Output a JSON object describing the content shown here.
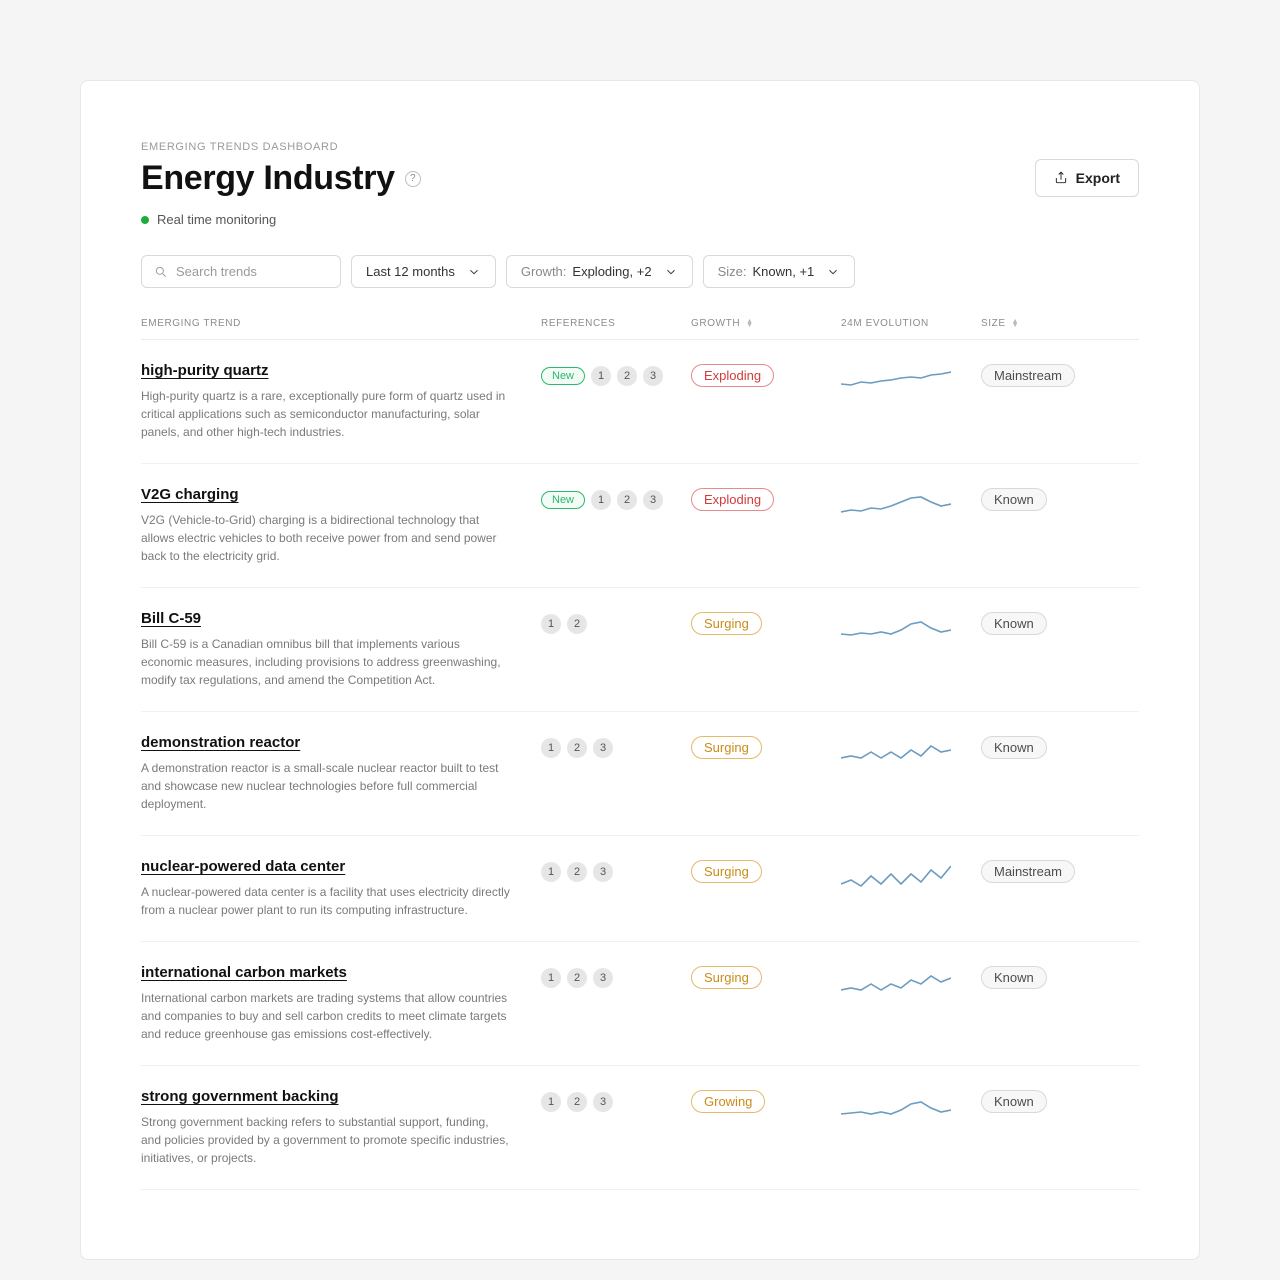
{
  "header": {
    "eyebrow": "EMERGING TRENDS DASHBOARD",
    "title": "Energy Industry",
    "monitor_label": "Real time monitoring",
    "export_label": "Export"
  },
  "controls": {
    "search_placeholder": "Search trends",
    "range_label": "Last 12 months",
    "growth_prefix": "Growth:",
    "growth_value": "Exploding, +2",
    "size_prefix": "Size:",
    "size_value": "Known, +1"
  },
  "columns": {
    "trend": "EMERGING TREND",
    "references": "REFERENCES",
    "growth": "GROWTH",
    "evolution": "24M EVOLUTION",
    "size": "SIZE"
  },
  "badges": {
    "new": "New"
  },
  "growth_styles": {
    "Exploding": {
      "class": "g-exploding"
    },
    "Surging": {
      "class": "g-surging"
    },
    "Growing": {
      "class": "g-growing"
    }
  },
  "sparkline_config": {
    "stroke": "#6a9bc0",
    "width": 110,
    "height": 34
  },
  "trends": [
    {
      "title": "high-purity quartz",
      "desc": "High-purity quartz is a rare, exceptionally pure form of quartz used in critical applications such as semiconductor manufacturing, solar panels, and other high-tech industries.",
      "is_new": true,
      "refs": [
        1,
        2,
        3
      ],
      "growth": "Exploding",
      "size": "Mainstream",
      "spark": [
        20,
        21,
        18,
        19,
        17,
        16,
        14,
        13,
        14,
        11,
        10,
        8
      ]
    },
    {
      "title": "V2G charging",
      "desc": "V2G (Vehicle-to-Grid) charging is a bidirectional technology that allows electric vehicles to both receive power from and send power back to the electricity grid.",
      "is_new": true,
      "refs": [
        1,
        2,
        3
      ],
      "growth": "Exploding",
      "size": "Known",
      "spark": [
        24,
        22,
        23,
        20,
        21,
        18,
        14,
        10,
        9,
        14,
        18,
        16
      ]
    },
    {
      "title": "Bill C-59",
      "desc": "Bill C-59 is a Canadian omnibus bill that implements various economic measures, including provisions to address greenwashing, modify tax regulations, and amend the Competition Act.",
      "is_new": false,
      "refs": [
        1,
        2
      ],
      "growth": "Surging",
      "size": "Known",
      "spark": [
        22,
        23,
        21,
        22,
        20,
        22,
        18,
        12,
        10,
        16,
        20,
        18
      ]
    },
    {
      "title": "demonstration reactor",
      "desc": "A demonstration reactor is a small-scale nuclear reactor built to test and showcase new nuclear technologies before full commercial deployment.",
      "is_new": false,
      "refs": [
        1,
        2,
        3
      ],
      "growth": "Surging",
      "size": "Known",
      "spark": [
        22,
        20,
        22,
        16,
        22,
        16,
        22,
        14,
        20,
        10,
        16,
        14
      ]
    },
    {
      "title": "nuclear-powered data center",
      "desc": "A nuclear-powered data center is a facility that uses electricity directly from a nuclear power plant to run its computing infrastructure.",
      "is_new": false,
      "refs": [
        1,
        2,
        3
      ],
      "growth": "Surging",
      "size": "Mainstream",
      "spark": [
        24,
        20,
        26,
        16,
        24,
        14,
        24,
        14,
        22,
        10,
        18,
        6
      ]
    },
    {
      "title": "international carbon markets",
      "desc": "International carbon markets are trading systems that allow countries and companies to buy and sell carbon credits to meet climate targets and reduce greenhouse gas emissions cost-effectively.",
      "is_new": false,
      "refs": [
        1,
        2,
        3
      ],
      "growth": "Surging",
      "size": "Known",
      "spark": [
        24,
        22,
        24,
        18,
        24,
        18,
        22,
        14,
        18,
        10,
        16,
        12
      ]
    },
    {
      "title": "strong government backing",
      "desc": "Strong government backing refers to substantial support, funding, and policies provided by a government to promote specific industries, initiatives, or projects.",
      "is_new": false,
      "refs": [
        1,
        2,
        3
      ],
      "growth": "Growing",
      "size": "Known",
      "spark": [
        24,
        23,
        22,
        24,
        22,
        24,
        20,
        14,
        12,
        18,
        22,
        20
      ]
    }
  ]
}
